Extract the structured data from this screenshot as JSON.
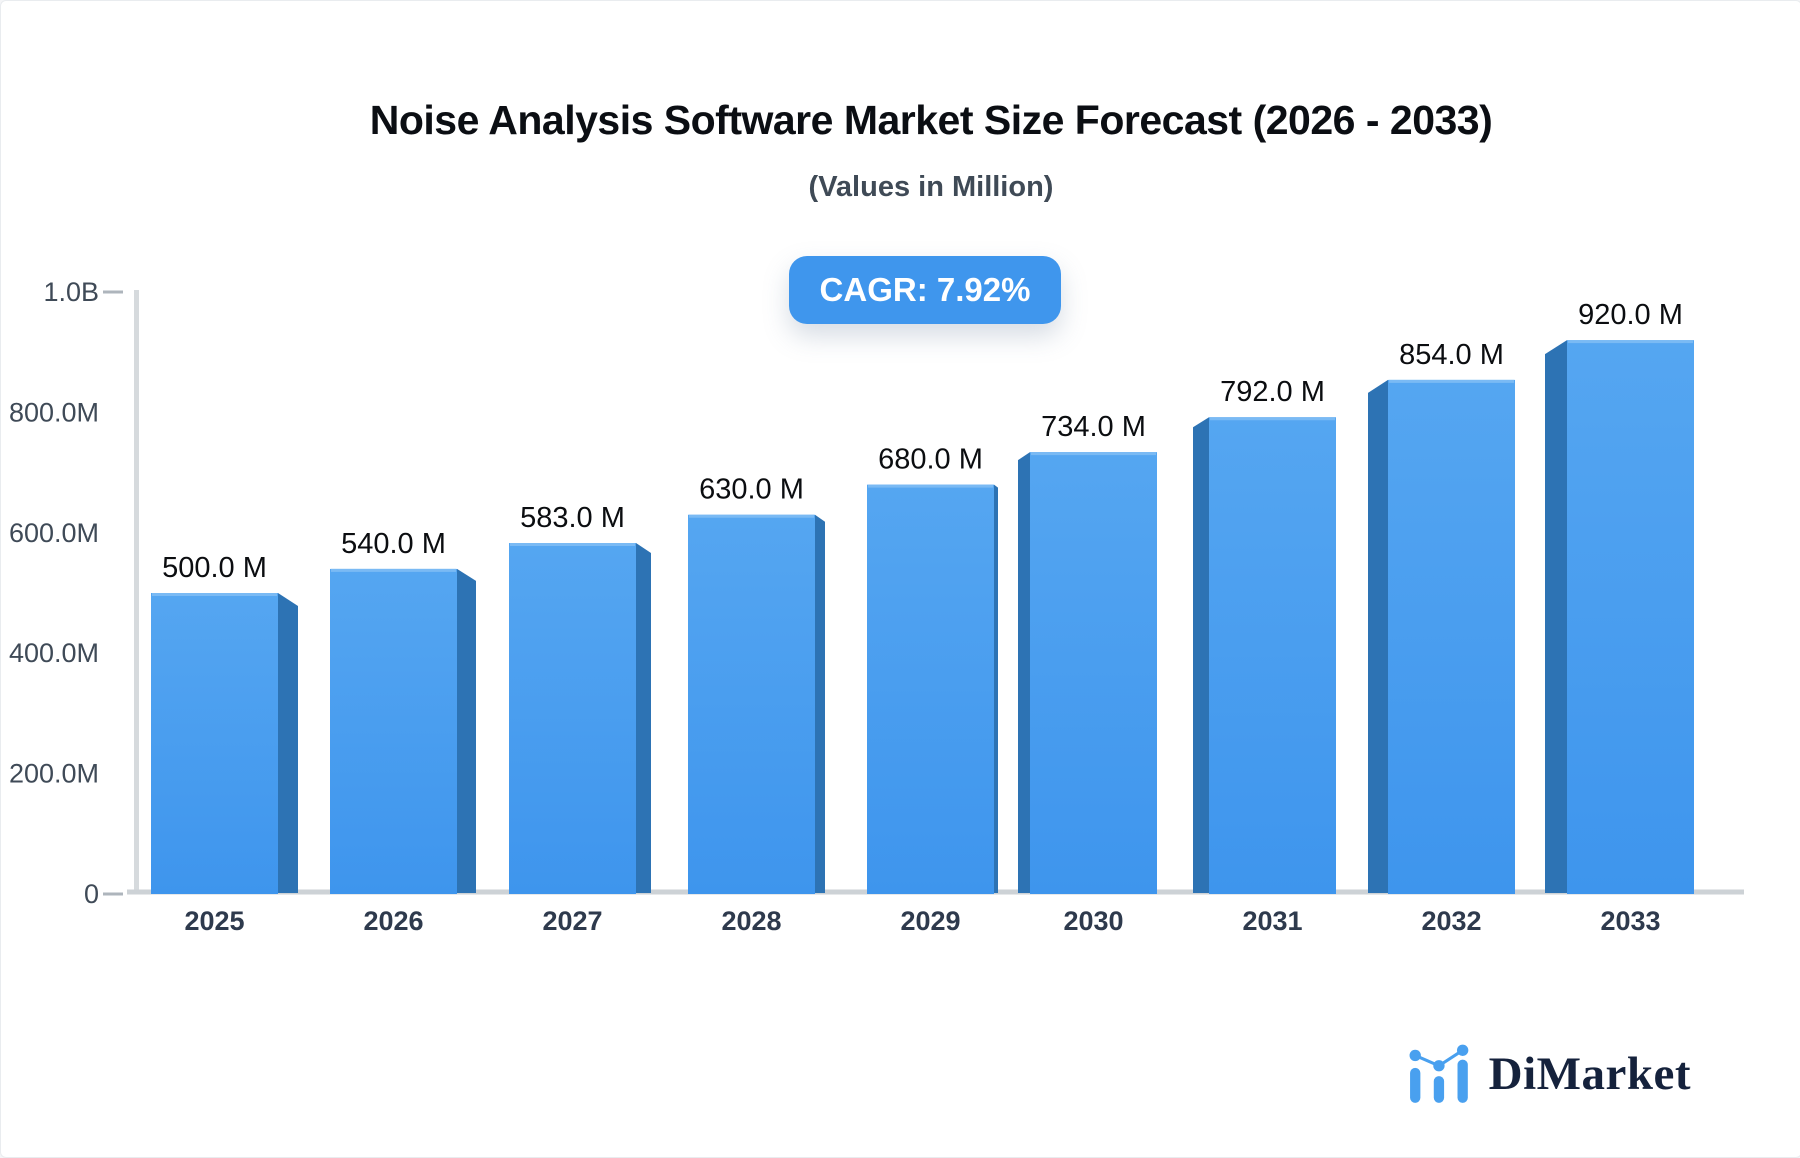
{
  "chart_data": {
    "type": "bar",
    "title": "Noise Analysis Software Market Size Forecast (2026 - 2033)",
    "subtitle": "(Values in Million)",
    "annotation": "CAGR: 7.92%",
    "categories": [
      "2025",
      "2026",
      "2027",
      "2028",
      "2029",
      "2030",
      "2031",
      "2032",
      "2033"
    ],
    "values": [
      500,
      540,
      583,
      630,
      680,
      734,
      792,
      854,
      920
    ],
    "value_labels": [
      "500.0 M",
      "540.0 M",
      "583.0 M",
      "630.0 M",
      "680.0 M",
      "734.0 M",
      "792.0 M",
      "854.0 M",
      "920.0 M"
    ],
    "xlabel": "",
    "ylabel": "",
    "ylim": [
      0,
      1000
    ],
    "yticks": [
      0,
      200,
      400,
      600,
      800,
      1000
    ],
    "ytick_labels": [
      "0",
      "200.0M",
      "400.0M",
      "600.0M",
      "800.0M",
      "1.0B"
    ],
    "grid": false,
    "legend": "none",
    "bar_style": "3d-perspective"
  },
  "logo": {
    "text": "DiMarket"
  },
  "colors": {
    "badge_bg": "#3F96ED",
    "badge_text": "#FFFFFF",
    "bar_face_top": "#55A6F1",
    "bar_face_bottom": "#3E95ED",
    "bar_top_highlight": "#7ABAF4",
    "bar_side": "#2D73B4",
    "axis_line_v": "#D6DADD",
    "axis_line_h": "#CDD2D6",
    "tick_dash": "#AEB5BC",
    "ytick_label": "#3F4A57",
    "xtick_label": "#2E3A4D",
    "value_label": "#0B0D10",
    "title_color": "#0B0E13",
    "subtitle_color": "#3F4A56",
    "logo_text": "#15223C",
    "logo_icon": "#49A0EF"
  }
}
